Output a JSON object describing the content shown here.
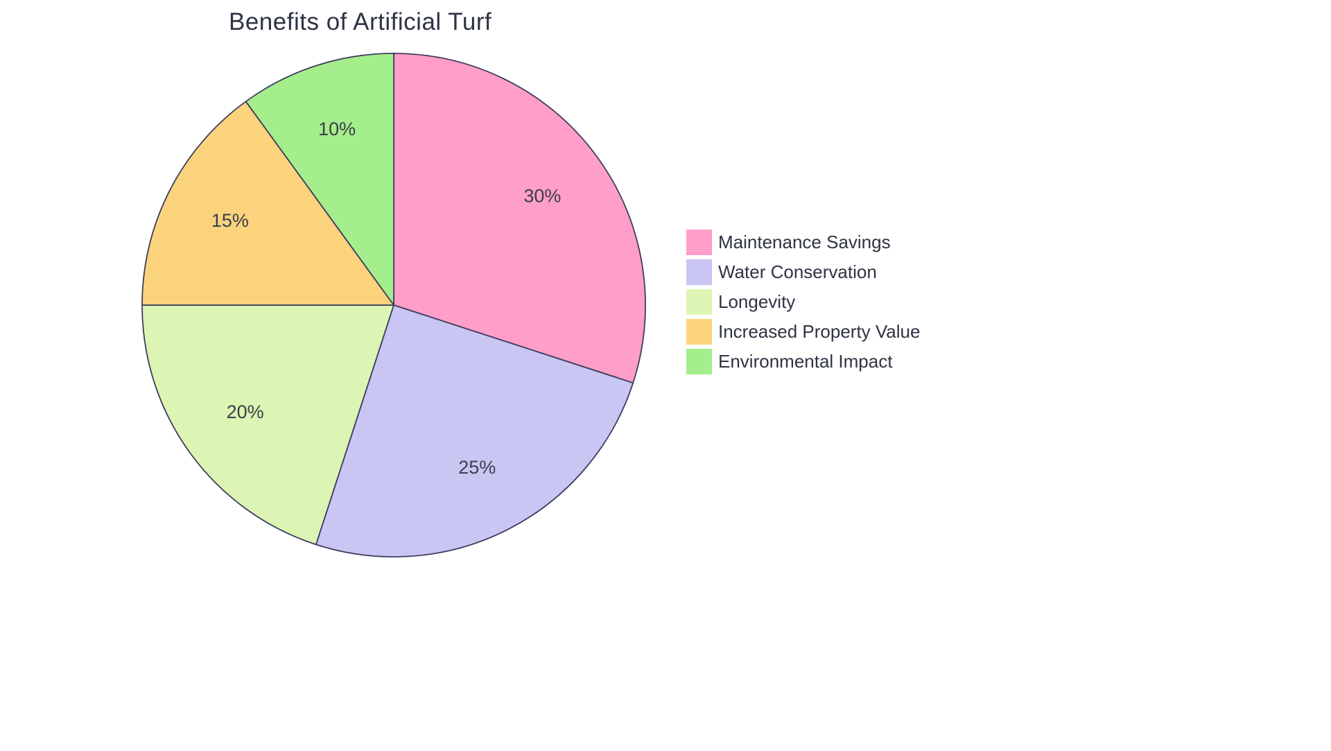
{
  "chart_data": {
    "type": "pie",
    "title": "Benefits of Artificial Turf",
    "slices": [
      {
        "label": "Maintenance Savings",
        "value": 30,
        "percent_label": "30%",
        "color": "#ff9ec8"
      },
      {
        "label": "Water Conservation",
        "value": 25,
        "percent_label": "25%",
        "color": "#c9c6f4"
      },
      {
        "label": "Longevity",
        "value": 20,
        "percent_label": "20%",
        "color": "#dcf5b4"
      },
      {
        "label": "Increased Property Value",
        "value": 15,
        "percent_label": "15%",
        "color": "#fbd37d"
      },
      {
        "label": "Environmental Impact",
        "value": 10,
        "percent_label": "10%",
        "color": "#a5ee8c"
      }
    ],
    "start_angle_deg": 0,
    "direction": "clockwise",
    "legend_position": "right",
    "stroke_color": "#3d3d5c",
    "label_color": "#3b3f4a",
    "title_color": "#2e3344",
    "background": "#ffffff"
  }
}
